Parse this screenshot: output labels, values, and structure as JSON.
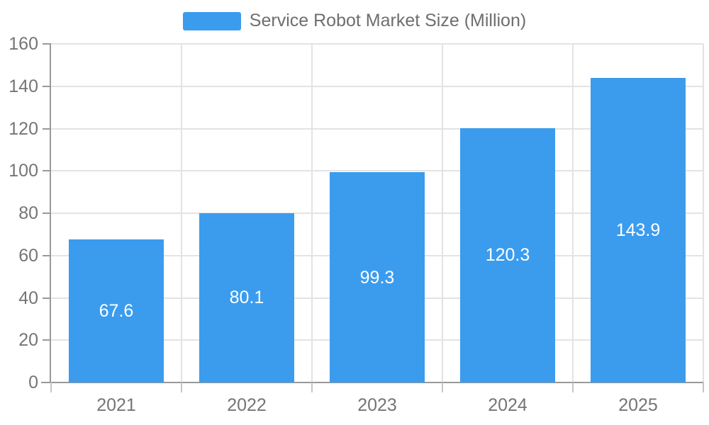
{
  "chart_data": {
    "type": "bar",
    "title": "",
    "legend": "Service Robot Market Size (Million)",
    "legend_position": "top-center",
    "categories": [
      "2021",
      "2022",
      "2023",
      "2024",
      "2025"
    ],
    "values": [
      67.6,
      80.1,
      99.3,
      120.3,
      143.9
    ],
    "value_labels": [
      "67.6",
      "80.1",
      "99.3",
      "120.3",
      "143.9"
    ],
    "xlabel": "",
    "ylabel": "",
    "ylim": [
      0,
      160
    ],
    "ytick_step": 20,
    "ytick_labels": [
      "0",
      "20",
      "40",
      "60",
      "80",
      "100",
      "120",
      "140",
      "160"
    ],
    "grid": true,
    "colors": {
      "bar": "#3B9CEE",
      "value_text": "#FFFFFF",
      "axis_line": "#999999",
      "x_tick": "#C6C6C6",
      "grid_line": "#E3E3E3",
      "axis_text": "#757575",
      "legend_text": "#6E6E6E",
      "background": "#FFFFFF"
    }
  }
}
